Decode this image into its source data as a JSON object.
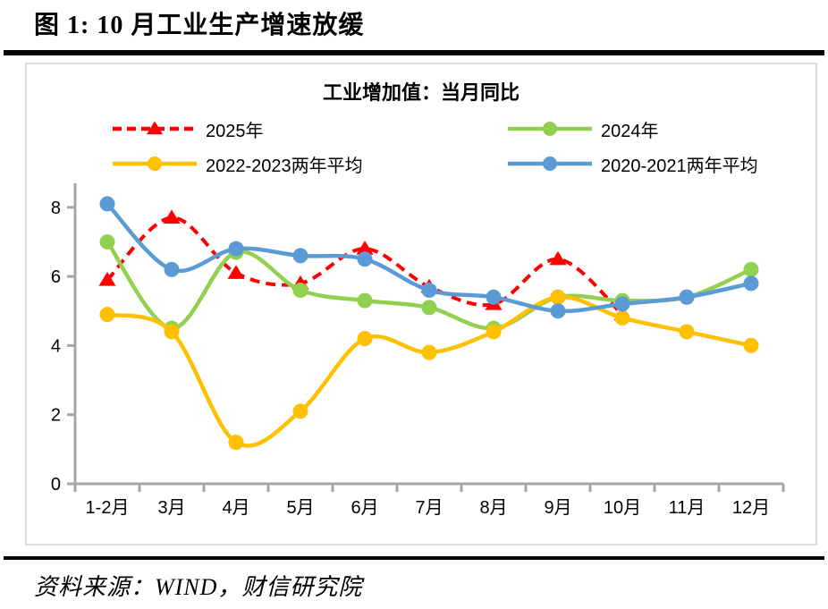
{
  "page": {
    "title": "图 1:  10 月工业生产增速放缓",
    "source": "资料来源：WIND，财信研究院"
  },
  "chart": {
    "title": "工业增加值：当月同比"
  },
  "legend": {
    "items": [
      {
        "label": "2025年"
      },
      {
        "label": "2024年"
      },
      {
        "label": "2022-2023两年平均"
      },
      {
        "label": "2020-2021两年平均"
      }
    ]
  },
  "colors": {
    "red": "#FF0000",
    "green": "#92D050",
    "yellow": "#FFC000",
    "blue": "#5B9BD5",
    "axis": "#A6A6A6",
    "panel_border": "#D9D9D9",
    "rule": "#000000"
  },
  "chart_data": {
    "type": "line",
    "title": "工业增加值：当月同比",
    "categories": [
      "1-2月",
      "3月",
      "4月",
      "5月",
      "6月",
      "7月",
      "8月",
      "9月",
      "10月",
      "11月",
      "12月"
    ],
    "series": [
      {
        "name": "2025年",
        "color": "#FF0000",
        "line_style": "dashed",
        "marker": "triangle",
        "values": [
          5.9,
          7.7,
          6.1,
          5.8,
          6.8,
          5.7,
          5.2,
          6.5,
          4.9,
          null,
          null
        ]
      },
      {
        "name": "2024年",
        "color": "#92D050",
        "line_style": "solid",
        "marker": "circle",
        "values": [
          7.0,
          4.5,
          6.7,
          5.6,
          5.3,
          5.1,
          4.5,
          5.4,
          5.3,
          5.4,
          6.2
        ]
      },
      {
        "name": "2022-2023两年平均",
        "color": "#FFC000",
        "line_style": "solid",
        "marker": "circle",
        "values": [
          4.9,
          4.4,
          1.2,
          2.1,
          4.2,
          3.8,
          4.4,
          5.4,
          4.8,
          4.4,
          4.0
        ]
      },
      {
        "name": "2020-2021两年平均",
        "color": "#5B9BD5",
        "line_style": "solid",
        "marker": "circle",
        "values": [
          8.1,
          6.2,
          6.8,
          6.6,
          6.5,
          5.6,
          5.4,
          5.0,
          5.2,
          5.4,
          5.8
        ]
      }
    ],
    "xlabel": "",
    "ylabel": "",
    "ylim": [
      0,
      8.7
    ],
    "yticks": [
      0,
      2,
      4,
      6,
      8
    ],
    "grid": false,
    "legend_position": "top, two columns",
    "line_smoothing": true
  }
}
